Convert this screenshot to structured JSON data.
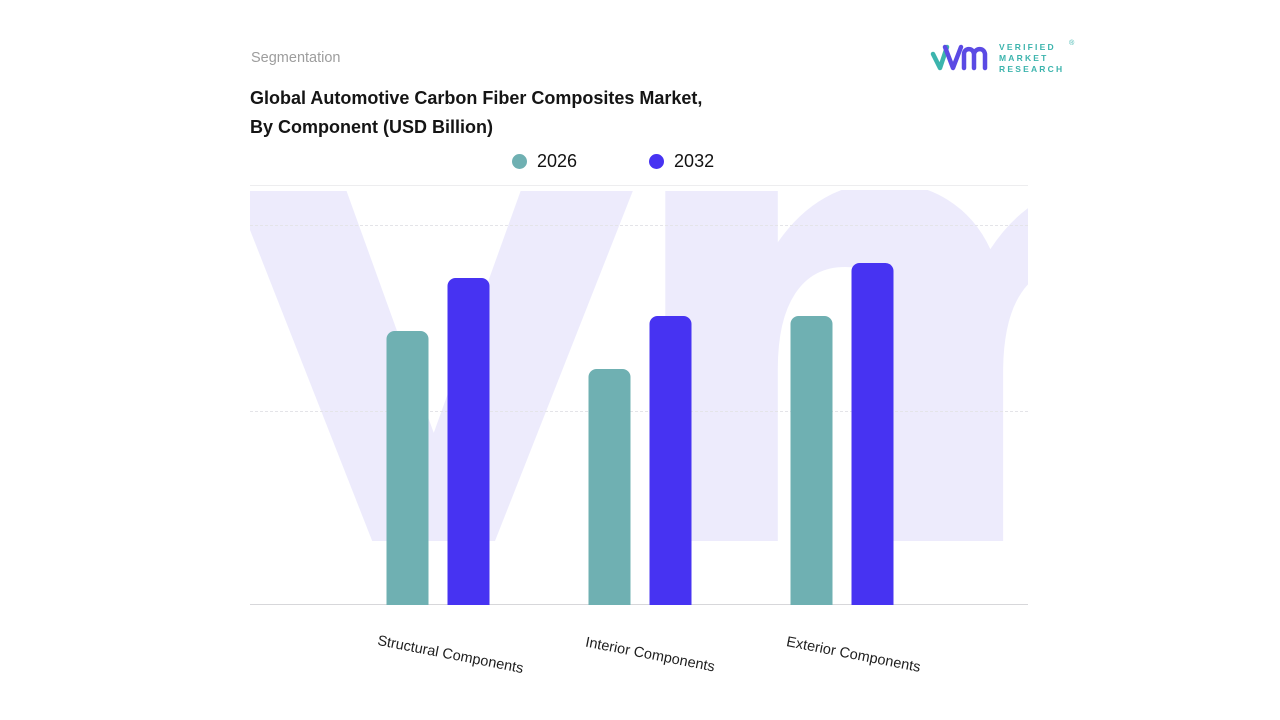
{
  "header": {
    "section_label": "Segmentation",
    "title_line1": "Global Automotive Carbon Fiber Composites Market,",
    "title_line2": "By Component (USD Billion)"
  },
  "branding": {
    "logo_line1": "VERIFIED",
    "logo_line2": "MARKET",
    "logo_line3": "RESEARCH",
    "registered_mark": "®",
    "watermark_text": "vm",
    "logo_purple": "#5b4ae4",
    "logo_teal": "#3cb4ad"
  },
  "chart_data": {
    "type": "bar",
    "title": "Global Automotive Carbon Fiber Composites Market, By Component (USD Billion)",
    "categories": [
      "Structural Components",
      "Interior Components",
      "Exterior Components"
    ],
    "series": [
      {
        "name": "2026",
        "color": "#6FB0B2",
        "values": [
          7.2,
          6.2,
          7.6
        ]
      },
      {
        "name": "2032",
        "color": "#4733F2",
        "values": [
          8.6,
          7.6,
          9.0
        ]
      }
    ],
    "ylabel": "USD Billion",
    "ylim": [
      0,
      10
    ],
    "grid": "horizontal-dashed",
    "legend_position": "top-center",
    "value_labels": false,
    "note": "no numeric axis labels shown; values estimated from bar heights"
  }
}
